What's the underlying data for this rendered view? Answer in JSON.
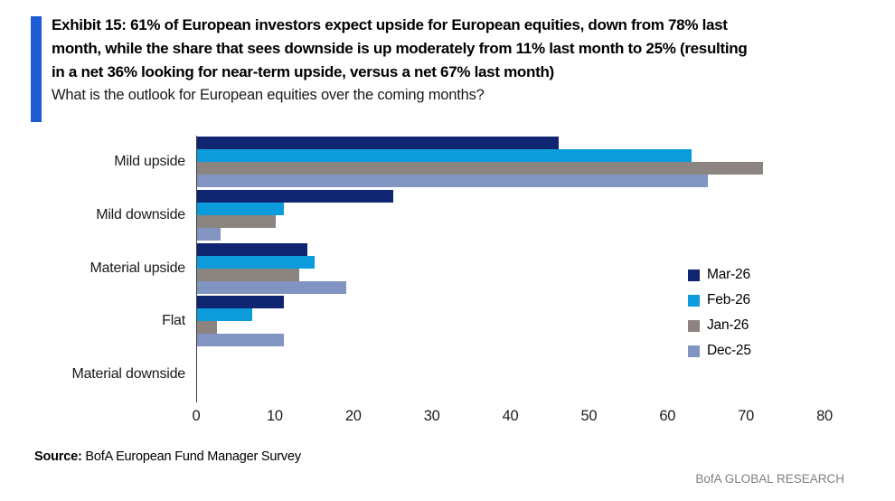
{
  "header": {
    "exhibit_title": "Exhibit 15: 61% of European investors expect upside for European equities, down from 78% last\nmonth, while the share that sees downside is up moderately from 11% last month to 25% (resulting\nin a net 36% looking for near-term upside, versus a net 67% last month)",
    "subtitle": "What is the outlook for European equities over the coming months?"
  },
  "colors": {
    "accent_blue": "#1d5cd5",
    "axis_line": "#3c3c3c",
    "footer_gray": "#808080"
  },
  "chart_data": {
    "type": "bar",
    "orientation": "horizontal",
    "title": "What is the outlook for European equities over the coming months?",
    "categories": [
      "Mild upside",
      "Mild downside",
      "Material upside",
      "Flat",
      "Material downside"
    ],
    "series": [
      {
        "name": "Mar-26",
        "color": "#0f2572",
        "values": [
          46,
          25,
          14,
          11,
          0
        ]
      },
      {
        "name": "Feb-26",
        "color": "#0c9cdc",
        "values": [
          63,
          11,
          15,
          7,
          0
        ]
      },
      {
        "name": "Jan-26",
        "color": "#8c8481",
        "values": [
          72,
          10,
          13,
          2.5,
          0
        ]
      },
      {
        "name": "Dec-25",
        "color": "#8294c1",
        "values": [
          65,
          3,
          19,
          11,
          0
        ]
      }
    ],
    "xlabel": "",
    "ylabel": "",
    "xlim": [
      0,
      80
    ],
    "xticks": [
      0,
      10,
      20,
      30,
      40,
      50,
      60,
      70,
      80
    ],
    "grid": false,
    "legend_position": "right-middle"
  },
  "source": {
    "label": "Source:",
    "text": " BofA European Fund Manager Survey"
  },
  "footer": {
    "brand": "BofA GLOBAL RESEARCH"
  }
}
